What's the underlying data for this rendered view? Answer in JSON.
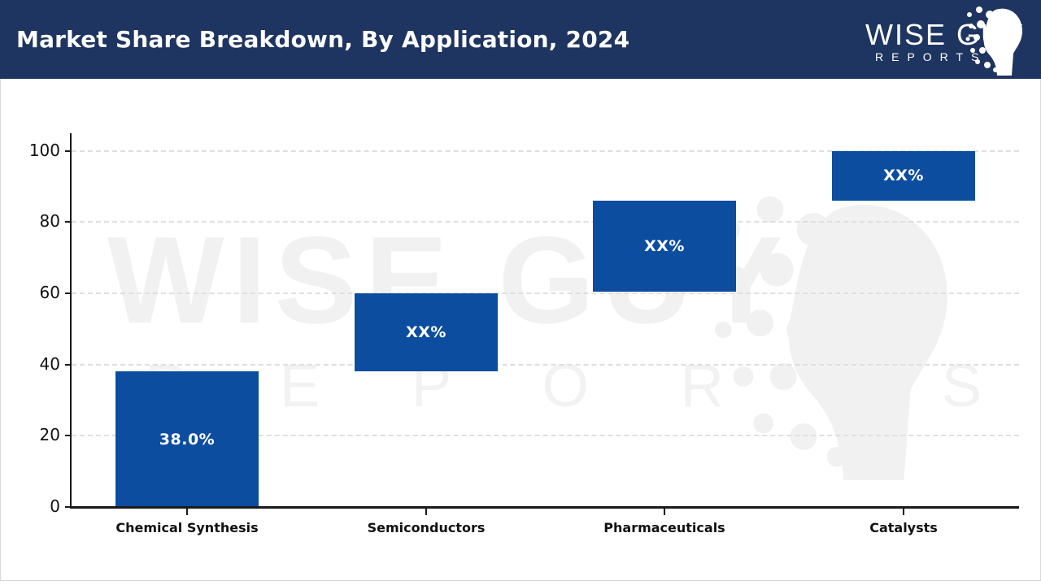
{
  "header": {
    "title": "Market Share Breakdown, By Application, 2024",
    "logo": {
      "line1": "WISE GUY",
      "line2": "REPORTS"
    }
  },
  "watermark": {
    "line1": "WISE GUY",
    "line2": "R E P O R T S"
  },
  "colors": {
    "header_navy": "#1e3461",
    "bar_blue": "#0c4da0",
    "grid_gray": "#dfdfdf",
    "axis_black": "#1a1a1a",
    "watermark_gray": "#f1f1f1"
  },
  "chart_data": {
    "type": "bar",
    "subtype": "waterfall",
    "title": "Market Share Breakdown, By Application, 2024",
    "categories": [
      "Chemical Synthesis",
      "Semiconductors",
      "Pharmaceuticals",
      "Catalysts"
    ],
    "segments": [
      {
        "category": "Chemical Synthesis",
        "start": 0,
        "end": 38,
        "label": "38.0%"
      },
      {
        "category": "Semiconductors",
        "start": 38,
        "end": 60,
        "label": "XX%"
      },
      {
        "category": "Pharmaceuticals",
        "start": 60.5,
        "end": 86,
        "label": "XX%"
      },
      {
        "category": "Catalysts",
        "start": 86,
        "end": 100,
        "label": "XX%"
      }
    ],
    "xlabel": "",
    "ylabel": "",
    "yticks": [
      0,
      20,
      40,
      60,
      80,
      100
    ],
    "ylim": [
      0,
      105
    ],
    "grid": "horizontal-dashed",
    "legend": "none"
  }
}
